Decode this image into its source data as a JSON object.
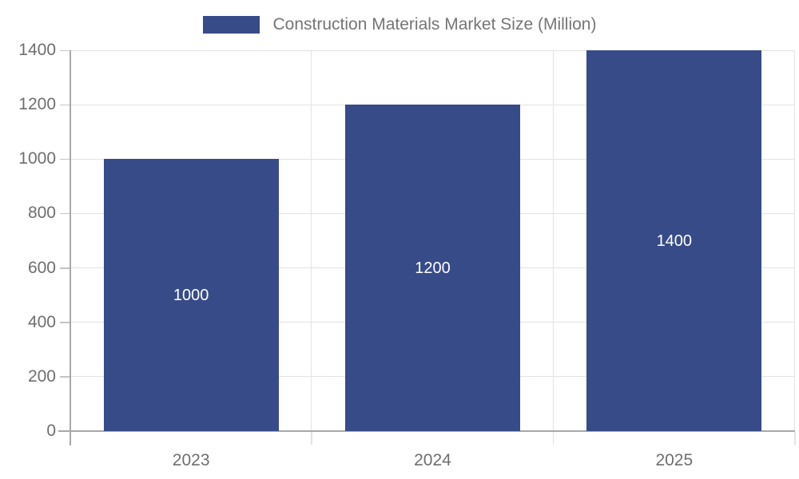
{
  "chart_data": {
    "type": "bar",
    "title": "Construction Materials Market Size (Million)",
    "legend": [
      "Construction Materials Market Size (Million)"
    ],
    "legend_position": "top-center",
    "categories": [
      "2023",
      "2024",
      "2025"
    ],
    "values": [
      1000,
      1200,
      1400
    ],
    "bar_value_labels": [
      "1000",
      "1200",
      "1400"
    ],
    "xlabel": "",
    "ylabel": "",
    "ylim": [
      0,
      1400
    ],
    "yticks": [
      0,
      200,
      400,
      600,
      800,
      1000,
      1200,
      1400
    ],
    "grid": true,
    "colors": {
      "bar": "#374B88",
      "bar_label_text": "#FFFFFF",
      "legend_text": "#757575",
      "axis_line": "#A8A8A8",
      "grid_line": "#E3E3E3",
      "tick_line": "#C4C4C4",
      "tick_text": "#6E6E6E",
      "background": "#FFFFFF"
    }
  }
}
